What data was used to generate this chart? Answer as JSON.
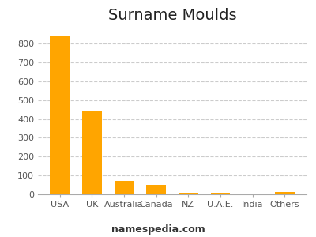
{
  "title": "Surname Moulds",
  "categories": [
    "USA",
    "UK",
    "Australia",
    "Canada",
    "NZ",
    "U.A.E.",
    "India",
    "Others"
  ],
  "values": [
    840,
    440,
    70,
    50,
    8,
    7,
    6,
    14
  ],
  "bar_color": "#FFA500",
  "ylim": [
    0,
    880
  ],
  "yticks": [
    0,
    100,
    200,
    300,
    400,
    500,
    600,
    700,
    800
  ],
  "grid_color": "#cccccc",
  "background_color": "#ffffff",
  "title_fontsize": 14,
  "tick_fontsize": 8,
  "watermark": "namespedia.com",
  "watermark_fontsize": 9
}
